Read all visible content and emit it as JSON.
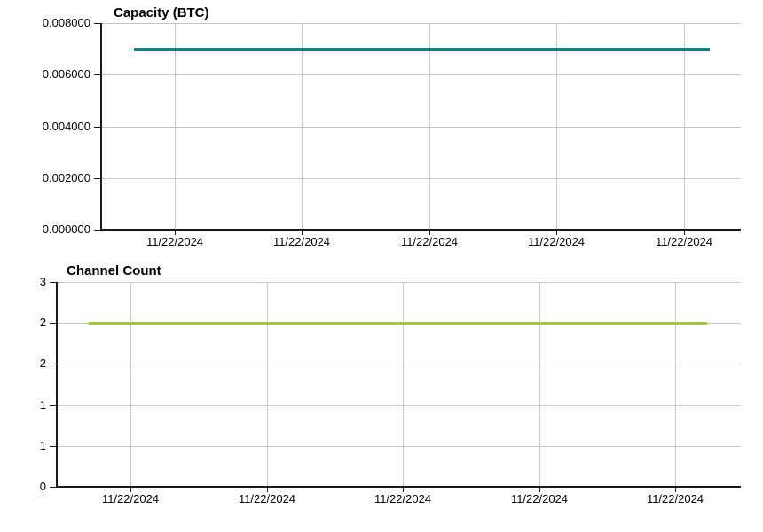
{
  "colors": {
    "background": "#ffffff",
    "gridline": "#c7c7c7",
    "axis": "#1a1a1a",
    "label_text": "#000000",
    "capacity_line": "#068787",
    "channel_line": "#9ccc3a"
  },
  "chart_data": [
    {
      "type": "line",
      "title": "Capacity (BTC)",
      "xlabel": "",
      "ylabel": "",
      "ylim": [
        0,
        0.008
      ],
      "grid": true,
      "legend": "none",
      "y_tick_labels": [
        "0.008000",
        "0.006000",
        "0.004000",
        "0.002000",
        "0.000000"
      ],
      "x_tick_labels": [
        "11/22/2024",
        "11/22/2024",
        "11/22/2024",
        "11/22/2024",
        "11/22/2024"
      ],
      "series": [
        {
          "name": "Capacity (BTC)",
          "constant_value": 0.007,
          "x_range": "intraday 11/22/2024",
          "color": "#068787"
        }
      ]
    },
    {
      "type": "line",
      "title": "Channel Count",
      "xlabel": "",
      "ylabel": "",
      "ylim": [
        0,
        3
      ],
      "grid": true,
      "legend": "none",
      "y_tick_labels": [
        "3",
        "2",
        "2",
        "1",
        "1",
        "0"
      ],
      "x_tick_labels": [
        "11/22/2024",
        "11/22/2024",
        "11/22/2024",
        "11/22/2024",
        "11/22/2024"
      ],
      "series": [
        {
          "name": "Channel Count",
          "constant_value": 2,
          "x_range": "intraday 11/22/2024",
          "color": "#9ccc3a"
        }
      ]
    }
  ]
}
